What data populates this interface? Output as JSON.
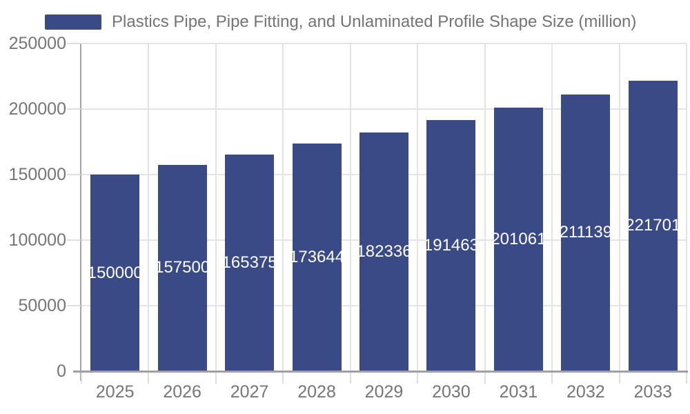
{
  "chart_data": {
    "type": "bar",
    "title": "",
    "categories": [
      "2025",
      "2026",
      "2027",
      "2028",
      "2029",
      "2030",
      "2031",
      "2032",
      "2033"
    ],
    "series": [
      {
        "name": "Plastics Pipe, Pipe Fitting, and Unlaminated Profile Shape Size (million)",
        "values": [
          150000,
          157500,
          165375,
          173644,
          182336,
          191463,
          201061,
          211139,
          221701
        ]
      }
    ],
    "value_labels": [
      "150000",
      "157500",
      "165375",
      "173644",
      "182336",
      "191463",
      "201061",
      "211139",
      "221701"
    ],
    "xlabel": "",
    "ylabel": "",
    "ylim": [
      0,
      250000
    ],
    "yticks": [
      0,
      50000,
      100000,
      150000,
      200000,
      250000
    ],
    "ytick_labels": [
      "0",
      "50000",
      "100000",
      "150000",
      "200000",
      "250000"
    ],
    "grid": true,
    "legend_position": "top-left",
    "bar_label_position": "inside-middle",
    "colors": {
      "bar": "#3A4A87",
      "bar_label": "#FFFFFF",
      "axis_text": "#757575",
      "legend_text": "#747474",
      "axis_line": "#A2A2A6",
      "gridline": "#E3E3E8",
      "background": "#FFFFFF"
    }
  }
}
